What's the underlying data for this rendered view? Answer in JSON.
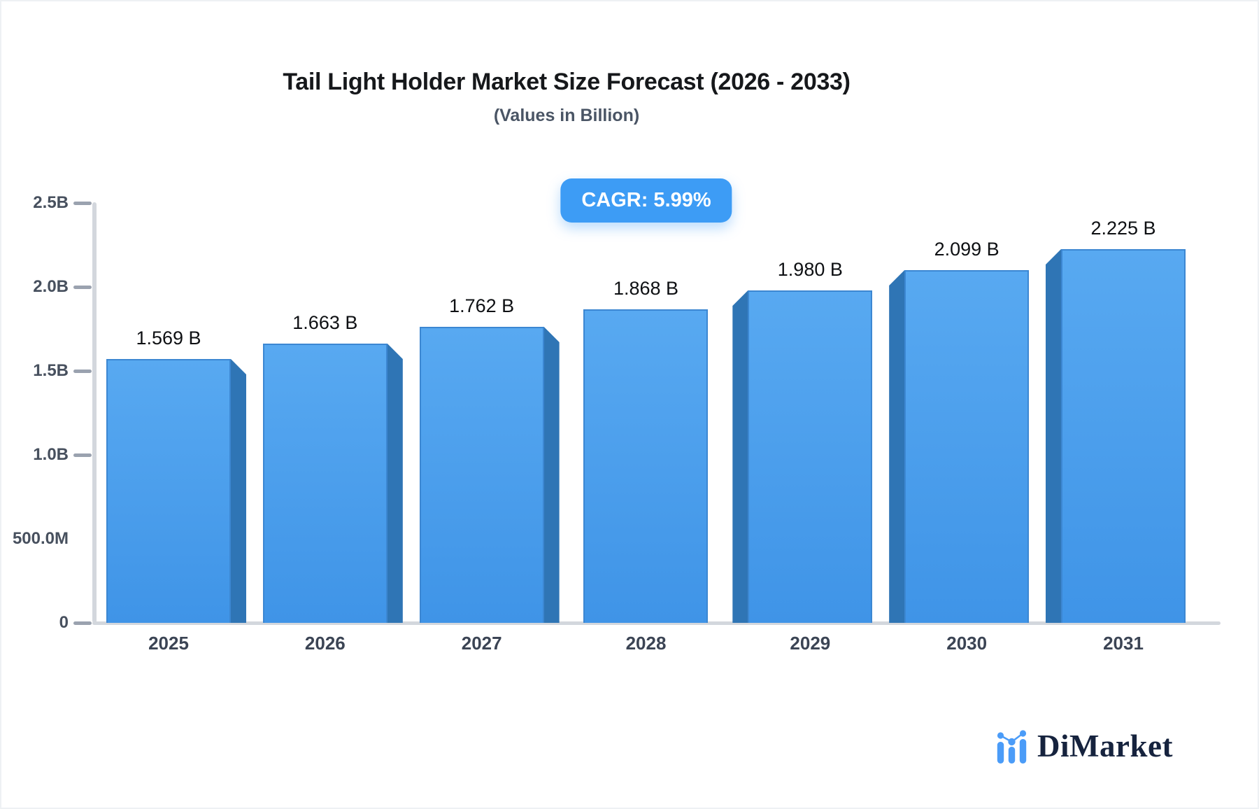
{
  "header": {
    "title": "Tail Light Holder Market Size Forecast (2026 - 2033)",
    "subtitle": "(Values in Billion)"
  },
  "badge": {
    "label": "CAGR: 5.99%",
    "bg": "#3d9cf5"
  },
  "chart_data": {
    "type": "bar",
    "title": "Tail Light Holder Market Size Forecast (2026 - 2033)",
    "subtitle": "(Values in Billion)",
    "cagr_label": "CAGR: 5.99%",
    "categories": [
      "2025",
      "2026",
      "2027",
      "2028",
      "2029",
      "2030",
      "2031"
    ],
    "values": [
      1.569,
      1.663,
      1.762,
      1.868,
      1.98,
      2.099,
      2.225
    ],
    "value_labels": [
      "1.569 B",
      "1.663 B",
      "1.762 B",
      "1.868 B",
      "1.980 B",
      "2.099 B",
      "2.225 B"
    ],
    "ylim": [
      0,
      2.5
    ],
    "y_ticks": [
      {
        "label": "2.5B",
        "value": 2.5,
        "dash": true
      },
      {
        "label": "2.0B",
        "value": 2.0,
        "dash": true
      },
      {
        "label": "1.5B",
        "value": 1.5,
        "dash": true
      },
      {
        "label": "1.0B",
        "value": 1.0,
        "dash": true
      },
      {
        "label": "500.0M",
        "value": 0.5,
        "dash": false
      },
      {
        "label": "0",
        "value": 0.0,
        "dash": true
      }
    ],
    "grid": false,
    "legend": "none",
    "bar_3d_sides": [
      "right",
      "right",
      "right",
      "none",
      "left",
      "left",
      "left"
    ],
    "colors": {
      "bar_top": "#58a9f1",
      "bar_bottom": "#3f94e7",
      "bar_border": "#3c87d2",
      "bar_side_3d": "#2f75b5",
      "axis_line": "#d3d7dd",
      "tick_dash": "#9aa2af",
      "axis_text": "#47505e",
      "value_text": "#0e1013"
    }
  },
  "logo": {
    "text": "DiMarket",
    "icon": "bar-chart-trend-icon",
    "icon_color": "#4b9cf8",
    "text_color": "#16233e"
  }
}
